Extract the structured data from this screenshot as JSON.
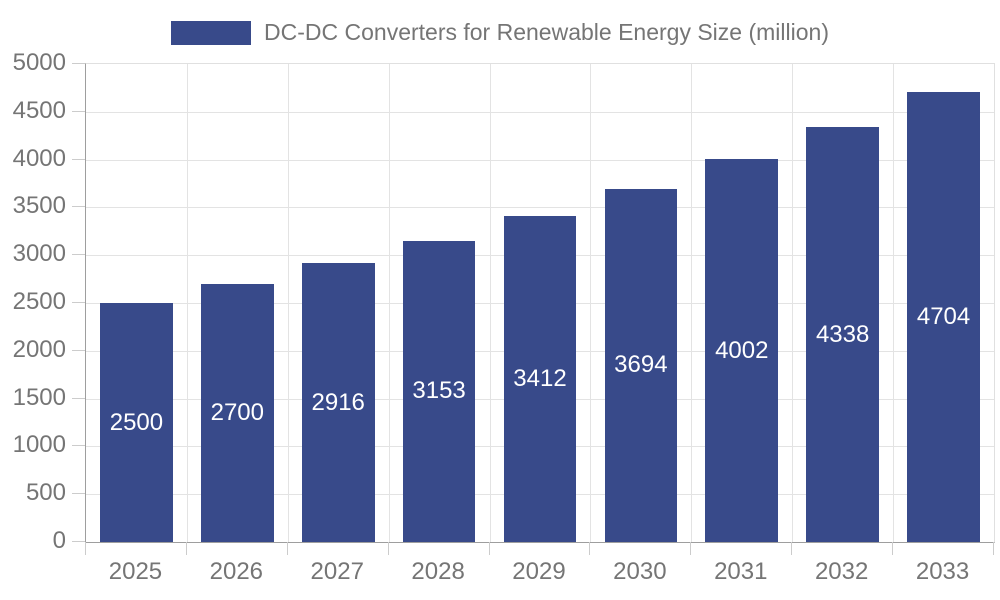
{
  "legend": {
    "label": "DC-DC Converters for Renewable Energy Size (million)"
  },
  "chart_data": {
    "type": "bar",
    "title": "DC-DC Converters for Renewable Energy Size (million)",
    "categories": [
      "2025",
      "2026",
      "2027",
      "2028",
      "2029",
      "2030",
      "2031",
      "2032",
      "2033"
    ],
    "values": [
      2500,
      2700,
      2916,
      3153,
      3412,
      3694,
      4002,
      4338,
      4704
    ],
    "xlabel": "",
    "ylabel": "",
    "ylim": [
      0,
      5000
    ],
    "yticks": [
      0,
      500,
      1000,
      1500,
      2000,
      2500,
      3000,
      3500,
      4000,
      4500,
      5000
    ],
    "grid": true,
    "legend_position": "top",
    "bar_color": "#384A8A",
    "value_label_color": "#ffffff",
    "axis_label_color": "#757575"
  }
}
